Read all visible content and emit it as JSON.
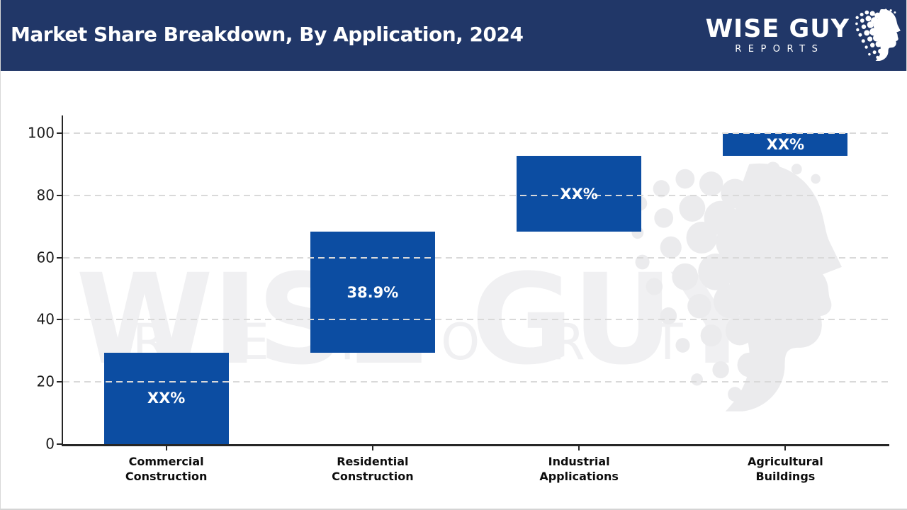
{
  "header": {
    "title": "Market Share Breakdown, By Application, 2024",
    "logo": {
      "primary": "WISE GUY",
      "secondary": "REPORTS"
    }
  },
  "watermark": {
    "primary": "WISE GUY",
    "secondary": "REPORTS"
  },
  "colors": {
    "header_bg": "#213768",
    "bar": "#0c4da2",
    "bar_label": "#ffffff",
    "grid": "#d9d9d9",
    "axis": "#262626",
    "watermark_text": "#f0f0f2",
    "watermark_head": "#ebebed",
    "title_text": "#ffffff"
  },
  "chart_data": {
    "type": "bar",
    "subtype": "stacked-waterfall",
    "title": "Market Share Breakdown, By Application, 2024",
    "categories": [
      "Commercial Construction",
      "Residential Construction",
      "Industrial Applications",
      "Agricultural Buildings"
    ],
    "category_lines": [
      [
        "Commercial",
        "Construction"
      ],
      [
        "Residential",
        "Construction"
      ],
      [
        "Industrial",
        "Applications"
      ],
      [
        "Agricultural",
        "Buildings"
      ]
    ],
    "segments": [
      {
        "category": "Commercial Construction",
        "start": 0,
        "value": 29.4,
        "label": "XX%"
      },
      {
        "category": "Residential Construction",
        "start": 29.4,
        "value": 38.9,
        "label": "38.9%"
      },
      {
        "category": "Industrial Applications",
        "start": 68.3,
        "value": 24.4,
        "label": "XX%"
      },
      {
        "category": "Agricultural Buildings",
        "start": 92.7,
        "value": 7.3,
        "label": "XX%"
      }
    ],
    "xlabel": "",
    "ylabel": "",
    "ylim": [
      0,
      100
    ],
    "yticks": [
      0,
      20,
      40,
      60,
      80,
      100
    ],
    "grid": "horizontal-dashed-over-bars",
    "legend": "none"
  }
}
